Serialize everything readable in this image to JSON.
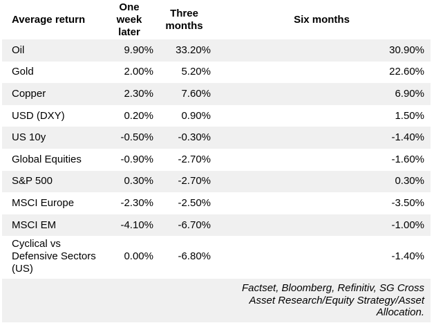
{
  "chart_data": {
    "type": "table",
    "columns": [
      "Average return",
      "One week later",
      "Three months",
      "Six months"
    ],
    "rows": [
      [
        "Oil",
        "9.90%",
        "33.20%",
        "30.90%"
      ],
      [
        "Gold",
        "2.00%",
        "5.20%",
        "22.60%"
      ],
      [
        "Copper",
        "2.30%",
        "7.60%",
        "6.90%"
      ],
      [
        "USD (DXY)",
        "0.20%",
        "0.90%",
        "1.50%"
      ],
      [
        "US 10y",
        "-0.50%",
        "-0.30%",
        "-1.40%"
      ],
      [
        "Global Equities",
        "-0.90%",
        "-2.70%",
        "-1.60%"
      ],
      [
        "S&P 500",
        "0.30%",
        "-2.70%",
        "0.30%"
      ],
      [
        "MSCI Europe",
        "-2.30%",
        "-2.50%",
        "-3.50%"
      ],
      [
        "MSCI EM",
        "-4.10%",
        "-6.70%",
        "-1.00%"
      ],
      [
        "Cyclical vs Defensive Sectors (US)",
        "0.00%",
        "-6.80%",
        "-1.40%"
      ]
    ],
    "source": "Factset, Bloomberg, Refinitiv, SG Cross Asset Research/Equity Strategy/Asset Allocation.",
    "layout": {
      "striped_rows": "odd-numbered rows shaded",
      "stripe_color": "#f0f0f0",
      "text_color": "#000000",
      "value_alignment": "right",
      "header_alignment": "center",
      "legend": "none",
      "grid": "off"
    }
  }
}
